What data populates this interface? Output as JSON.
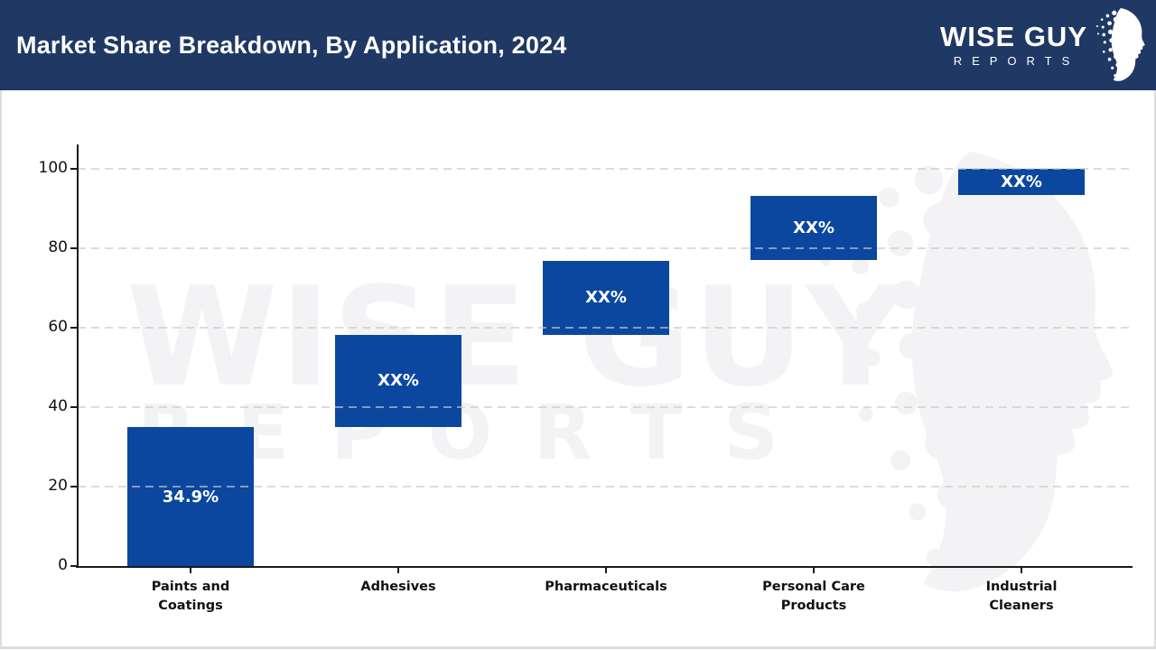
{
  "header": {
    "title": "Market Share Breakdown, By Application, 2024",
    "bg_color": "#1F3864"
  },
  "logo": {
    "line1": "WISE GUY",
    "line2": "REPORTS"
  },
  "watermark": {
    "line1": "WISE GUY",
    "line2": "REPORTS"
  },
  "chart_data": {
    "type": "bar",
    "subtype": "waterfall",
    "title": "Market Share Breakdown, By Application, 2024",
    "xlabel": "",
    "ylabel": "",
    "categories": [
      "Paints and\nCoatings",
      "Adhesives",
      "Pharmaceuticals",
      "Personal Care\nProducts",
      "Industrial\nCleaners"
    ],
    "segments": [
      {
        "category": "Paints and Coatings",
        "start": 0,
        "end": 34.9,
        "label": "34.9%"
      },
      {
        "category": "Adhesives",
        "start": 35,
        "end": 58.2,
        "label": "XX%"
      },
      {
        "category": "Pharmaceuticals",
        "start": 58.2,
        "end": 76.8,
        "label": "XX%"
      },
      {
        "category": "Personal Care Products",
        "start": 77,
        "end": 93.2,
        "label": "XX%"
      },
      {
        "category": "Industrial Cleaners",
        "start": 93.4,
        "end": 100,
        "label": "XX%"
      }
    ],
    "yticks": [
      0,
      20,
      40,
      60,
      80,
      100
    ],
    "ylim": [
      0,
      106
    ],
    "grid": "horizontal-dashed",
    "legend": "none",
    "colors": {
      "bar": "#0B479E",
      "grid": "#C9C9C9",
      "axis": "#1a1a1a",
      "header_bg": "#1F3864",
      "watermark": "#F3F3F5"
    }
  }
}
